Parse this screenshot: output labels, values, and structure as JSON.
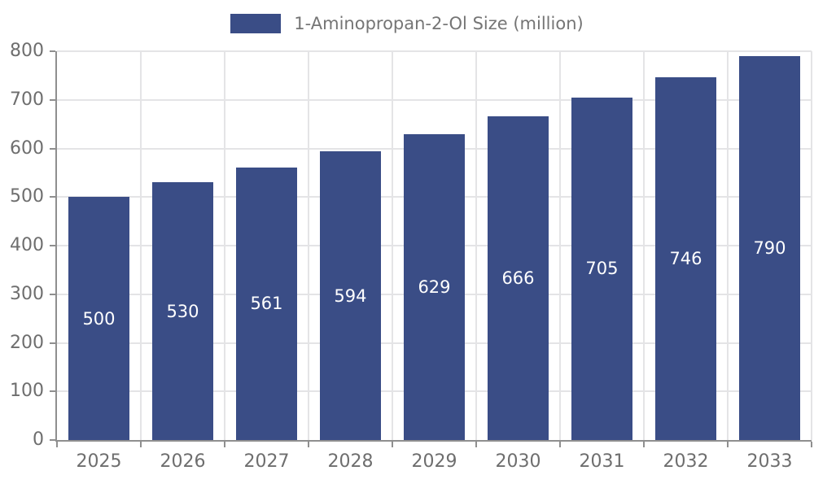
{
  "legend": {
    "label": "1-Aminopropan-2-Ol Size (million)"
  },
  "chart_data": {
    "type": "bar",
    "title": "",
    "series_name": "1-Aminopropan-2-Ol Size (million)",
    "categories": [
      "2025",
      "2026",
      "2027",
      "2028",
      "2029",
      "2030",
      "2031",
      "2032",
      "2033"
    ],
    "values": [
      500,
      530,
      561,
      594,
      629,
      666,
      705,
      746,
      790
    ],
    "value_labels": [
      "500",
      "530",
      "561",
      "594",
      "629",
      "666",
      "705",
      "746",
      "790"
    ],
    "xlabel": "",
    "ylabel": "",
    "ylim": [
      0,
      800
    ],
    "yticks": [
      0,
      100,
      200,
      300,
      400,
      500,
      600,
      700,
      800
    ],
    "grid": true,
    "legend_position": "top-center",
    "bar_color": "#3A4D86",
    "value_label_color": "#ffffff",
    "tick_label_color": "#6e6e6e",
    "gridline_color": "#e4e4e6",
    "axis_line_color": "#8f8f8f"
  }
}
